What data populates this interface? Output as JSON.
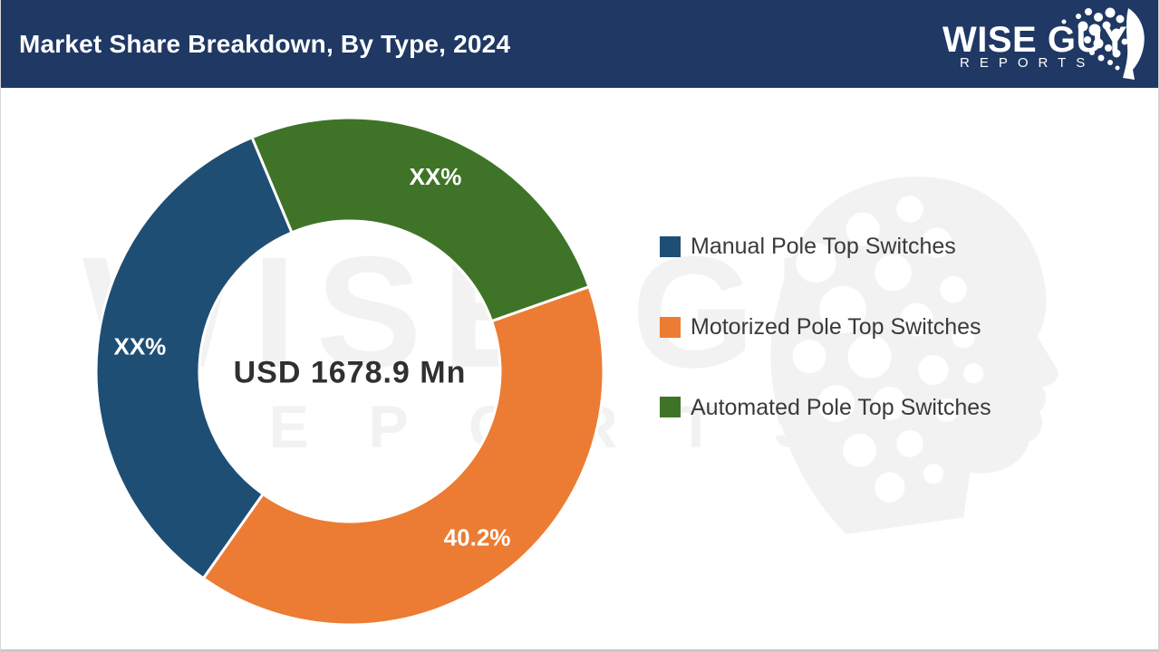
{
  "header": {
    "title": "Market Share Breakdown, By Type, 2024",
    "background": "#1F3864",
    "logo": {
      "line1": "WISE GUY",
      "line2": "REPORTS"
    }
  },
  "watermark": {
    "line1": "WISE GUY",
    "line2": "REPORTS"
  },
  "chart_data": {
    "type": "pie",
    "variant": "donut",
    "title": "Market Share Breakdown, By Type, 2024",
    "center_label": "USD 1678.9 Mn",
    "start_angle_deg_from_top": -22.7,
    "segments": [
      {
        "name": "Automated Pole Top Switches",
        "label": "XX%",
        "pct": 25.9,
        "color": "#3F7428"
      },
      {
        "name": "Motorized Pole Top Switches",
        "label": "40.2%",
        "pct": 40.2,
        "color": "#EC7C33"
      },
      {
        "name": "Manual Pole Top Switches",
        "label": "XX%",
        "pct": 33.9,
        "color": "#1F4E74"
      }
    ],
    "legend_position": "right",
    "legend": [
      {
        "label": "Manual Pole Top Switches",
        "color": "#1F4E74"
      },
      {
        "label": "Motorized Pole Top Switches",
        "color": "#EC7C33"
      },
      {
        "label": "Automated Pole Top Switches",
        "color": "#3F7428"
      }
    ],
    "label_color": "#ffffff"
  }
}
